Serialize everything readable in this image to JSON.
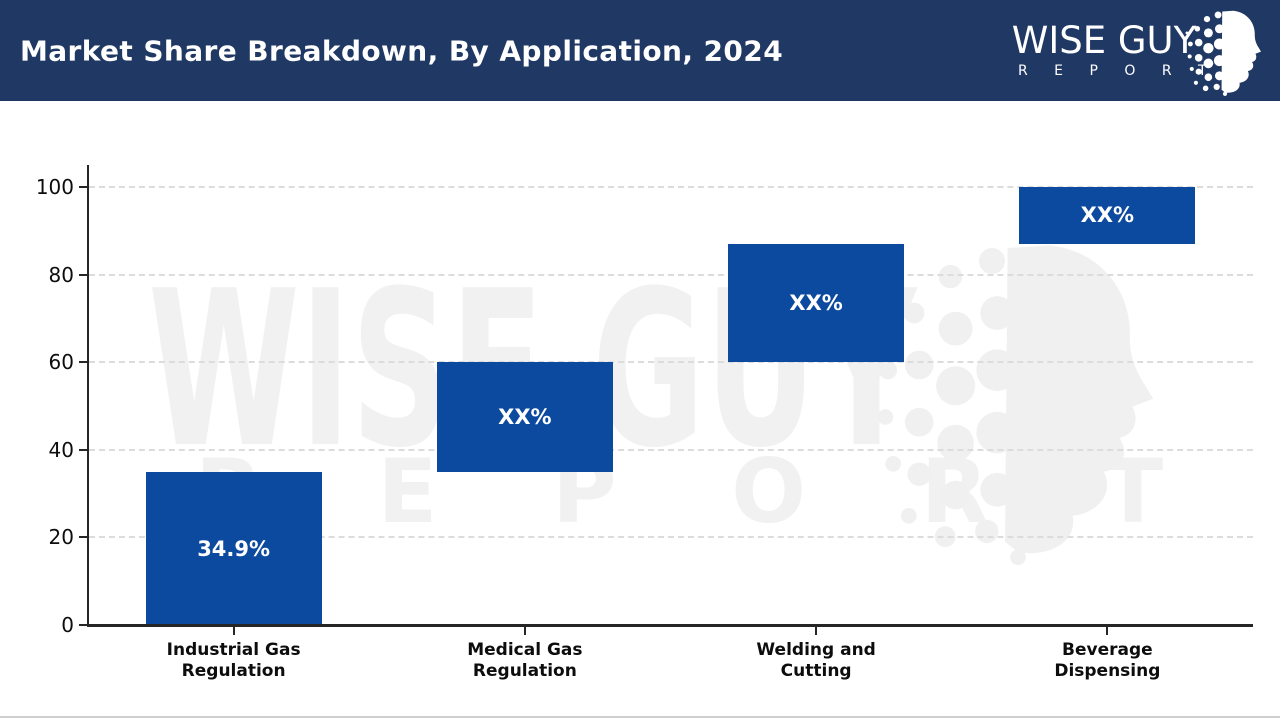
{
  "header": {
    "title": "Market Share Breakdown, By Application, 2024",
    "logo": {
      "line1": "WISE GUY",
      "line2": "REPORTS"
    }
  },
  "watermark": {
    "line1": "WISE GUY",
    "line2": "REPORTS"
  },
  "colors": {
    "header_bg": "#203864",
    "bar": "#0b4a9f",
    "bar_label": "#ffffff",
    "grid": "#dcdcdc",
    "axis": "#262626",
    "watermark": "#f1f1f1"
  },
  "chart_data": {
    "type": "bar",
    "subtype": "waterfall",
    "title": "Market Share Breakdown, By Application, 2024",
    "categories": [
      {
        "line1": "Industrial Gas",
        "line2": "Regulation"
      },
      {
        "line1": "Medical Gas",
        "line2": "Regulation"
      },
      {
        "line1": "Welding and",
        "line2": "Cutting"
      },
      {
        "line1": "Beverage",
        "line2": "Dispensing"
      }
    ],
    "segments": [
      {
        "category": "Industrial Gas Regulation",
        "start": 0,
        "end": 34.9,
        "label": "34.9%"
      },
      {
        "category": "Medical Gas Regulation",
        "start": 34.9,
        "end": 60,
        "label": "XX%"
      },
      {
        "category": "Welding and Cutting",
        "start": 60,
        "end": 87,
        "label": "XX%"
      },
      {
        "category": "Beverage Dispensing",
        "start": 87,
        "end": 100,
        "label": "XX%"
      }
    ],
    "ylim": [
      0,
      100
    ],
    "yticks": [
      0,
      20,
      40,
      60,
      80,
      100
    ],
    "xlabel": "",
    "ylabel": "",
    "grid": "horizontal-dashed",
    "legend": "none",
    "bar_color": "#0b4a9f"
  }
}
